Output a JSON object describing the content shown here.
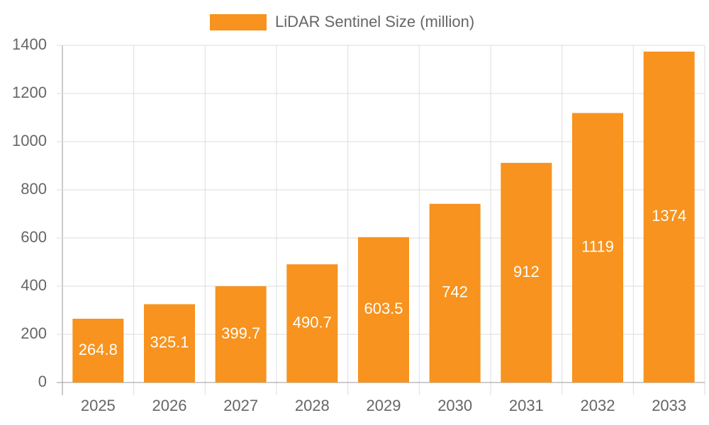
{
  "chart_data": {
    "type": "bar",
    "categories": [
      "2025",
      "2026",
      "2027",
      "2028",
      "2029",
      "2030",
      "2031",
      "2032",
      "2033"
    ],
    "series": [
      {
        "name": "LiDAR Sentinel Size (million)",
        "color": "#f7931e",
        "values": [
          264.8,
          325.1,
          399.7,
          490.7,
          603.5,
          742,
          912,
          1119,
          1374
        ]
      }
    ],
    "ylim": [
      0,
      1400
    ],
    "yticks": [
      0,
      200,
      400,
      600,
      800,
      1000,
      1200,
      1400
    ],
    "grid": true
  }
}
